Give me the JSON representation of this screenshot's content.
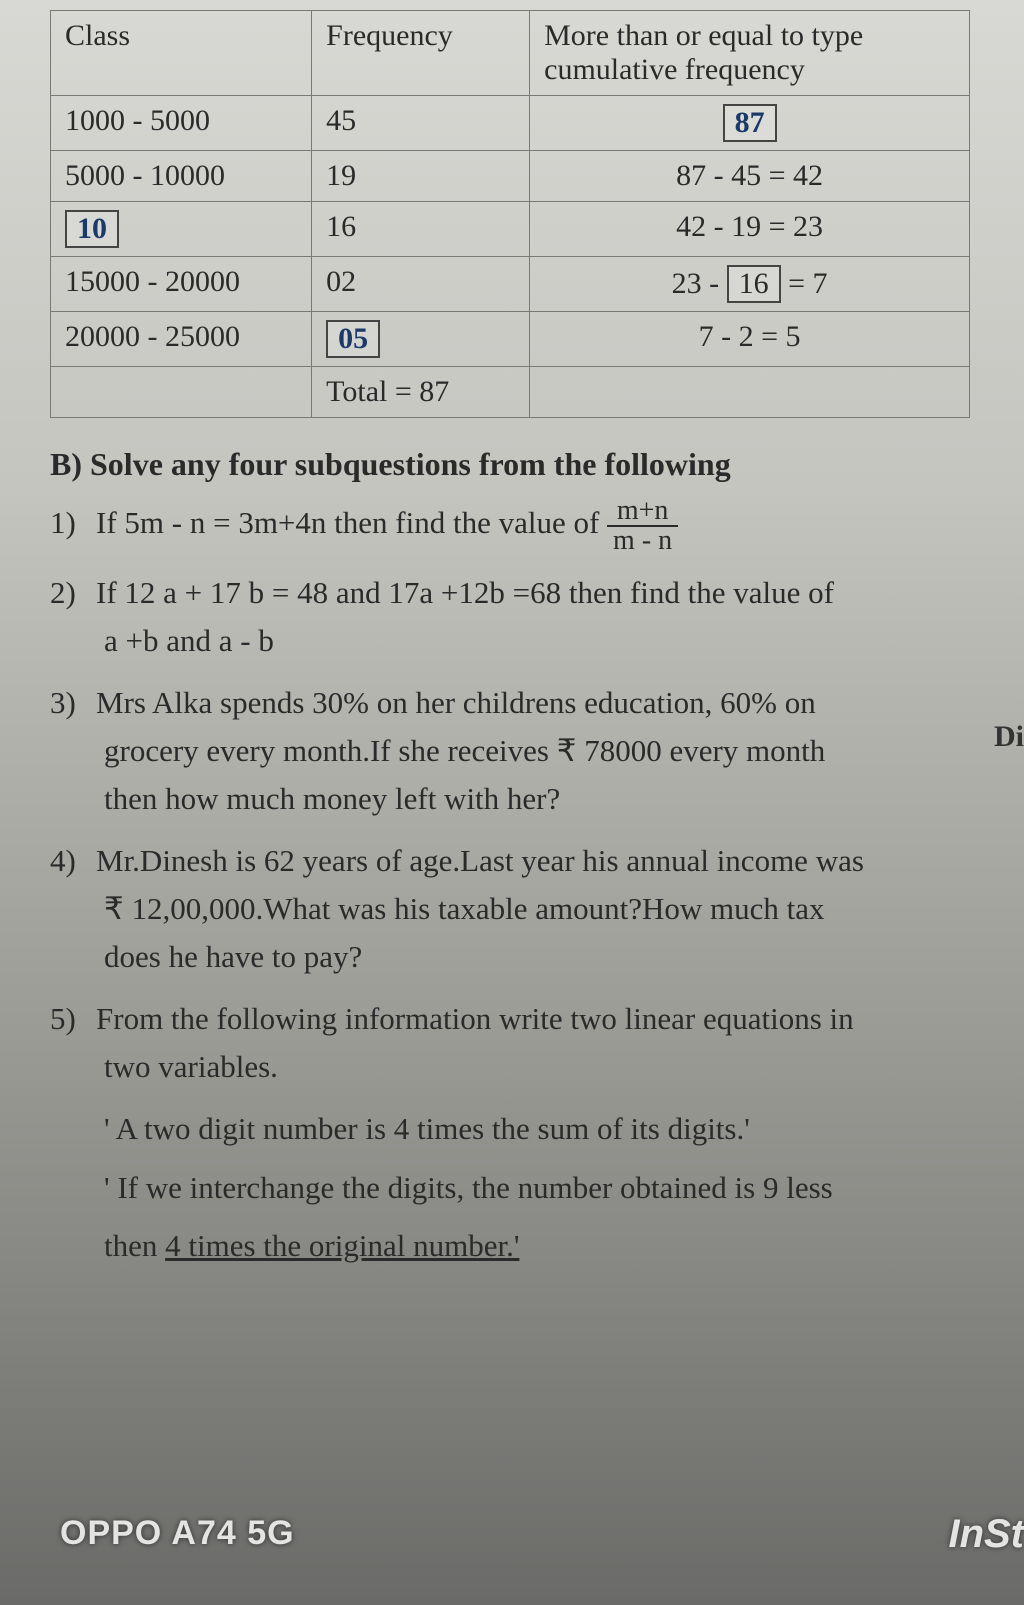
{
  "table": {
    "headers": {
      "class": "Class",
      "freq": "Frequency",
      "cum": "More than or equal to type cumulative frequency"
    },
    "rows": [
      {
        "class": "1000 - 5000",
        "freq": "45",
        "cum_boxed": "87",
        "cum_plain": ""
      },
      {
        "class": "5000 - 10000",
        "freq": "19",
        "cum_plain": "87 - 45 = 42"
      },
      {
        "class_boxed": "10",
        "freq": "16",
        "cum_plain": "42 - 19 = 23"
      },
      {
        "class": "15000 - 20000",
        "freq": "02",
        "cum_pre": "23 - ",
        "cum_box": "16",
        "cum_post": " = 7"
      },
      {
        "class": "20000 - 25000",
        "freq_boxed": "05",
        "cum_plain": "7 - 2 = 5"
      }
    ],
    "total": "Total = 87"
  },
  "sectionB": "B) Solve any four subquestions from the following",
  "q1": {
    "num": "1)",
    "pre": "If 5m - n = 3m+4n then find the value of ",
    "frac_num": "m+n",
    "frac_den": "m - n"
  },
  "q2": {
    "num": "2)",
    "line1": "If 12 a + 17 b = 48 and 17a +12b =68 then find the value of",
    "line2": "a +b and a - b"
  },
  "q3": {
    "num": "3)",
    "line1": "Mrs Alka spends 30% on her childrens education, 60% on",
    "line2": "grocery every month.If she receives ₹ 78000 every month",
    "line3": "then how much money left with her?"
  },
  "q4": {
    "num": "4)",
    "line1": "Mr.Dinesh is 62 years of age.Last year his annual income was",
    "line2": "₹ 12,00,000.What was his taxable amount?How much tax",
    "line3": "does he have to pay?"
  },
  "q5": {
    "num": "5)",
    "line1": "From the following information write two linear equations in",
    "line2": "two variables."
  },
  "q5a": "' A two digit number is 4 times the sum of its digits.'",
  "q5b": "' If we interchange the digits, the number obtained is 9 less",
  "q5c_pre": "then ",
  "q5c_u": "4 times the original number.'",
  "watermark": "OPPO A74 5G",
  "insta": "InSt",
  "edge": "Di",
  "colors": {
    "ink": "#2a2a2a",
    "hand": "#1a3a6a",
    "border": "#7a7a75"
  }
}
